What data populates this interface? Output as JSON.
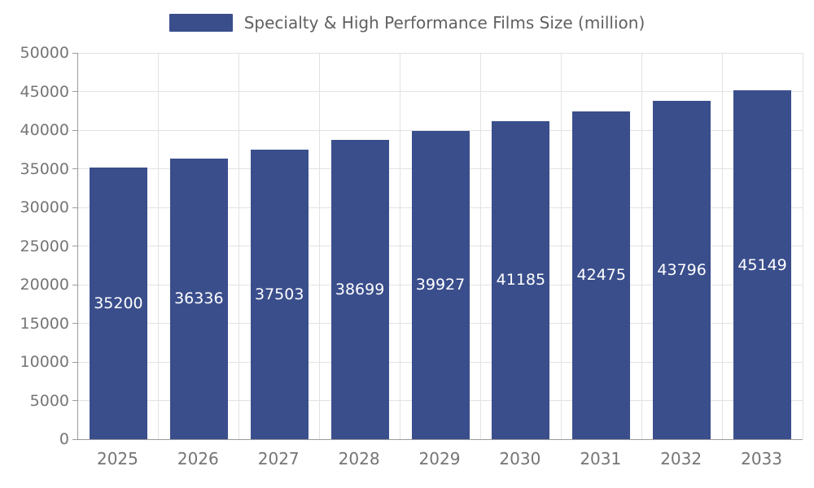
{
  "legend": {
    "label": "Specialty & High Performance Films Size (million)"
  },
  "colors": {
    "bar": "#3a4e8c",
    "grid": "#e2e2e2",
    "axis": "#9a9a9a",
    "tick_text": "#757575",
    "value_text": "#ffffff",
    "legend_text": "#606060"
  },
  "chart_data": {
    "type": "bar",
    "title": "Specialty & High Performance Films Size (million)",
    "categories": [
      "2025",
      "2026",
      "2027",
      "2028",
      "2029",
      "2030",
      "2031",
      "2032",
      "2033"
    ],
    "values": [
      35200,
      36336,
      37503,
      38699,
      39927,
      41185,
      42475,
      43796,
      45149
    ],
    "xlabel": "",
    "ylabel": "",
    "ylim": [
      0,
      50000
    ],
    "ytick_step": 5000,
    "ytick_labels": [
      "0",
      "5000",
      "10000",
      "15000",
      "20000",
      "25000",
      "30000",
      "35000",
      "40000",
      "45000",
      "50000"
    ],
    "grid": true,
    "legend_position": "top",
    "bar_label_position": "inside-center"
  }
}
